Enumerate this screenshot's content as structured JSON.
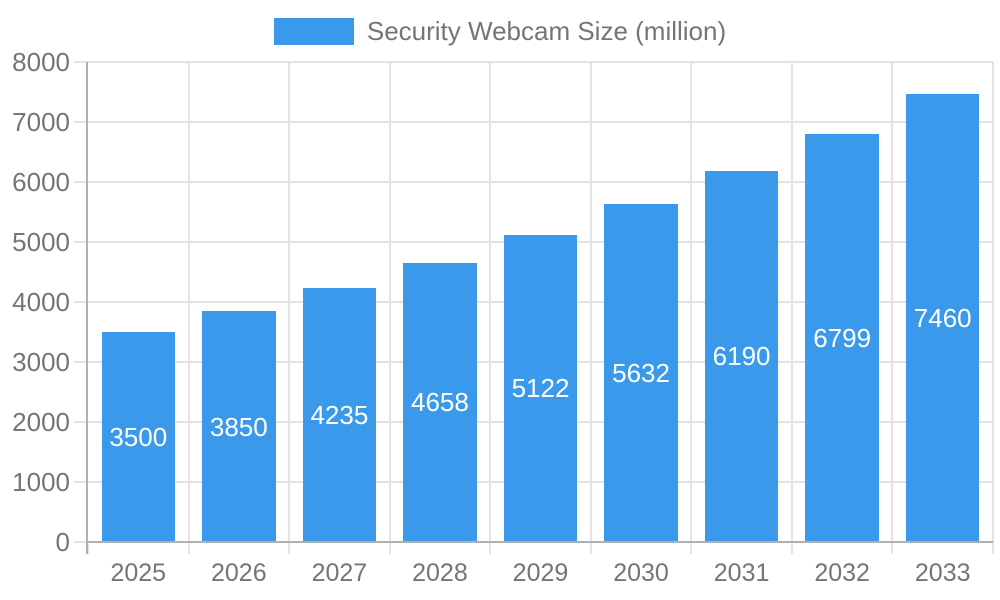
{
  "chart_data": {
    "type": "bar",
    "title": "Security Webcam Size (million)",
    "legend": {
      "label": "Security Webcam Size (million)",
      "position": "top"
    },
    "categories": [
      "2025",
      "2026",
      "2027",
      "2028",
      "2029",
      "2030",
      "2031",
      "2032",
      "2033"
    ],
    "series": [
      {
        "name": "Security Webcam Size (million)",
        "values": [
          3500,
          3850,
          4235,
          4658,
          5122,
          5632,
          6190,
          6799,
          7460
        ]
      }
    ],
    "xlabel": "",
    "ylabel": "",
    "ylim": [
      0,
      8000
    ],
    "y_ticks": [
      0,
      1000,
      2000,
      3000,
      4000,
      5000,
      6000,
      7000,
      8000
    ],
    "grid": true,
    "value_labels": "inside-center",
    "colors": {
      "bar": "#3B99EC",
      "bar_label": "#ffffff",
      "axis_text": "#757575",
      "legend_text": "#757575",
      "gridline": "#e3e3e3",
      "axis_line": "#b0b0b0",
      "background": "#ffffff"
    }
  }
}
